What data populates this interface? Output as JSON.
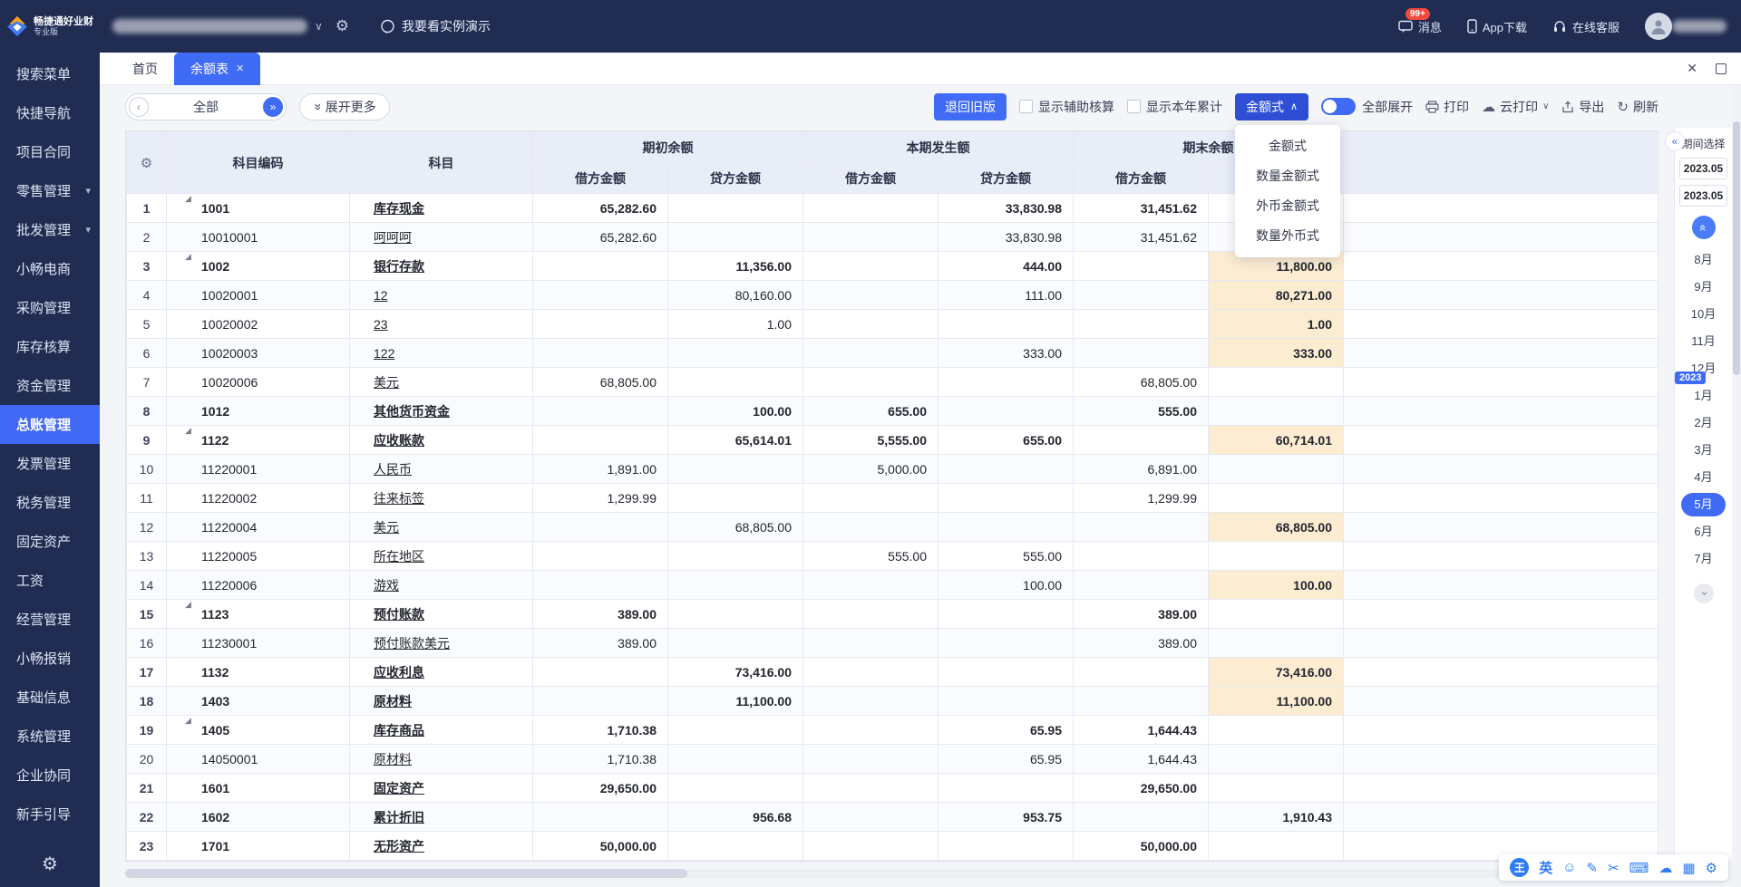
{
  "colors": {
    "accent": "#3f6bf5",
    "sidebar_bg": "#202c52",
    "format_button_bg": "#2e4ed6",
    "highlight_cell": "#fcecd2",
    "badge_red": "#f5483d"
  },
  "icons": {
    "caret_down": "▾",
    "chevron_up": "∧",
    "chevron_down": "∨",
    "tree_expanded": "◢",
    "double_left": "«",
    "double_right": "»",
    "single_left": "‹",
    "gear": "⚙",
    "cloud": "☁",
    "refresh": "↻",
    "close": "✕"
  },
  "app": {
    "logo_title": "畅捷通好业财",
    "logo_subtitle": "专业版"
  },
  "topbar": {
    "demo_link": "我要看实例演示",
    "messages_label": "消息",
    "messages_badge": "99+",
    "app_download": "App下载",
    "online_service": "在线客服"
  },
  "sidebar": {
    "items": [
      {
        "label": "搜索菜单"
      },
      {
        "label": "快捷导航"
      },
      {
        "label": "项目合同"
      },
      {
        "label": "零售管理",
        "expandable": true
      },
      {
        "label": "批发管理",
        "expandable": true
      },
      {
        "label": "小畅电商"
      },
      {
        "label": "采购管理"
      },
      {
        "label": "库存核算"
      },
      {
        "label": "资金管理"
      },
      {
        "label": "总账管理",
        "active": true
      },
      {
        "label": "发票管理"
      },
      {
        "label": "税务管理"
      },
      {
        "label": "固定资产"
      },
      {
        "label": "工资"
      },
      {
        "label": "经营管理"
      },
      {
        "label": "小畅报销"
      },
      {
        "label": "基础信息"
      },
      {
        "label": "系统管理"
      },
      {
        "label": "企业协同"
      },
      {
        "label": "新手引导"
      }
    ]
  },
  "tabs": [
    {
      "label": "首页",
      "active": false
    },
    {
      "label": "余额表",
      "active": true,
      "closable": true
    }
  ],
  "toolbar": {
    "subject_filter": "全部",
    "expand_more": "展开更多",
    "back_old": "退回旧版",
    "checkbox1": "显示辅助核算",
    "checkbox2": "显示本年累计",
    "format_button": "金额式",
    "toggle_label": "全部展开",
    "print": "打印",
    "cloud_print": "云打印",
    "export": "导出",
    "refresh": "刷新"
  },
  "format_menu": {
    "items": [
      "金额式",
      "数量金额式",
      "外币金额式",
      "数量外币式"
    ]
  },
  "table": {
    "col_groups": [
      "期初余额",
      "本期发生额",
      "期末余额"
    ],
    "headers": {
      "code": "科目编码",
      "name": "科目",
      "debit": "借方金额",
      "credit": "贷方金额"
    },
    "rows": [
      {
        "num": 1,
        "code": "1001",
        "name": "库存现金",
        "bold": true,
        "arrow": true,
        "v": [
          "65,282.60",
          "",
          "",
          "33,830.98",
          "31,451.62",
          ""
        ],
        "hl": false
      },
      {
        "num": 2,
        "code": "10010001",
        "name": "呵呵呵",
        "bold": false,
        "arrow": false,
        "v": [
          "65,282.60",
          "",
          "",
          "33,830.98",
          "31,451.62",
          ""
        ],
        "hl": false
      },
      {
        "num": 3,
        "code": "1002",
        "name": "银行存款",
        "bold": true,
        "arrow": true,
        "v": [
          "",
          "11,356.00",
          "",
          "444.00",
          "",
          "11,800.00"
        ],
        "hl": true
      },
      {
        "num": 4,
        "code": "10020001",
        "name": "12",
        "bold": false,
        "arrow": false,
        "v": [
          "",
          "80,160.00",
          "",
          "111.00",
          "",
          "80,271.00"
        ],
        "hl": true
      },
      {
        "num": 5,
        "code": "10020002",
        "name": "23",
        "bold": false,
        "arrow": false,
        "v": [
          "",
          "1.00",
          "",
          "",
          "",
          "1.00"
        ],
        "hl": true
      },
      {
        "num": 6,
        "code": "10020003",
        "name": "122",
        "bold": false,
        "arrow": false,
        "v": [
          "",
          "",
          "",
          "333.00",
          "",
          "333.00"
        ],
        "hl": true
      },
      {
        "num": 7,
        "code": "10020006",
        "name": "美元",
        "bold": false,
        "arrow": false,
        "v": [
          "68,805.00",
          "",
          "",
          "",
          "68,805.00",
          ""
        ],
        "hl": false
      },
      {
        "num": 8,
        "code": "1012",
        "name": "其他货币资金",
        "bold": true,
        "arrow": false,
        "v": [
          "",
          "100.00",
          "655.00",
          "",
          "555.00",
          ""
        ],
        "hl": false
      },
      {
        "num": 9,
        "code": "1122",
        "name": "应收账款",
        "bold": true,
        "arrow": true,
        "v": [
          "",
          "65,614.01",
          "5,555.00",
          "655.00",
          "",
          "60,714.01"
        ],
        "hl": true
      },
      {
        "num": 10,
        "code": "11220001",
        "name": "人民币",
        "bold": false,
        "arrow": false,
        "v": [
          "1,891.00",
          "",
          "5,000.00",
          "",
          "6,891.00",
          ""
        ],
        "hl": false
      },
      {
        "num": 11,
        "code": "11220002",
        "name": "往来标签",
        "bold": false,
        "arrow": false,
        "v": [
          "1,299.99",
          "",
          "",
          "",
          "1,299.99",
          ""
        ],
        "hl": false
      },
      {
        "num": 12,
        "code": "11220004",
        "name": "美元",
        "bold": false,
        "arrow": false,
        "v": [
          "",
          "68,805.00",
          "",
          "",
          "",
          "68,805.00"
        ],
        "hl": true
      },
      {
        "num": 13,
        "code": "11220005",
        "name": "所在地区",
        "bold": false,
        "arrow": false,
        "v": [
          "",
          "",
          "555.00",
          "555.00",
          "",
          ""
        ],
        "hl": false
      },
      {
        "num": 14,
        "code": "11220006",
        "name": "游戏",
        "bold": false,
        "arrow": false,
        "v": [
          "",
          "",
          "",
          "100.00",
          "",
          "100.00"
        ],
        "hl": true
      },
      {
        "num": 15,
        "code": "1123",
        "name": "预付账款",
        "bold": true,
        "arrow": true,
        "v": [
          "389.00",
          "",
          "",
          "",
          "389.00",
          ""
        ],
        "hl": false
      },
      {
        "num": 16,
        "code": "11230001",
        "name": "预付账款美元",
        "bold": false,
        "arrow": false,
        "v": [
          "389.00",
          "",
          "",
          "",
          "389.00",
          ""
        ],
        "hl": false
      },
      {
        "num": 17,
        "code": "1132",
        "name": "应收利息",
        "bold": true,
        "arrow": false,
        "v": [
          "",
          "73,416.00",
          "",
          "",
          "",
          "73,416.00"
        ],
        "hl": true
      },
      {
        "num": 18,
        "code": "1403",
        "name": "原材料",
        "bold": true,
        "arrow": false,
        "v": [
          "",
          "11,100.00",
          "",
          "",
          "",
          "11,100.00"
        ],
        "hl": true
      },
      {
        "num": 19,
        "code": "1405",
        "name": "库存商品",
        "bold": true,
        "arrow": true,
        "v": [
          "1,710.38",
          "",
          "",
          "65.95",
          "1,644.43",
          ""
        ],
        "hl": false
      },
      {
        "num": 20,
        "code": "14050001",
        "name": "原材料",
        "bold": false,
        "arrow": false,
        "v": [
          "1,710.38",
          "",
          "",
          "65.95",
          "1,644.43",
          ""
        ],
        "hl": false
      },
      {
        "num": 21,
        "code": "1601",
        "name": "固定资产",
        "bold": true,
        "arrow": false,
        "v": [
          "29,650.00",
          "",
          "",
          "",
          "29,650.00",
          ""
        ],
        "hl": false
      },
      {
        "num": 22,
        "code": "1602",
        "name": "累计折旧",
        "bold": true,
        "arrow": false,
        "v": [
          "",
          "956.68",
          "",
          "953.75",
          "",
          "1,910.43"
        ],
        "hl": false
      },
      {
        "num": 23,
        "code": "1701",
        "name": "无形资产",
        "bold": true,
        "arrow": false,
        "v": [
          "50,000.00",
          "",
          "",
          "",
          "50,000.00",
          ""
        ],
        "hl": false
      }
    ]
  },
  "period_panel": {
    "title": "期间选择",
    "from": "2023.05",
    "to": "2023.05",
    "year_badge": "2023",
    "months": [
      "8月",
      "9月",
      "10月",
      "11月",
      "12月",
      "1月",
      "2月",
      "3月",
      "4月",
      "5月",
      "6月",
      "7月"
    ],
    "active_month": "5月"
  },
  "ime_bar": {
    "logo": "王",
    "lang": "英",
    "icons": [
      {
        "name": "emoji-icon",
        "glyph": "☺"
      },
      {
        "name": "pen-icon",
        "glyph": "✎"
      },
      {
        "name": "scissors-icon",
        "glyph": "✂"
      },
      {
        "name": "keyboard-icon",
        "glyph": "⌨"
      },
      {
        "name": "cloud-icon",
        "glyph": "☁"
      },
      {
        "name": "grid-icon",
        "glyph": "▦"
      },
      {
        "name": "settings-icon",
        "glyph": "⚙"
      }
    ]
  }
}
